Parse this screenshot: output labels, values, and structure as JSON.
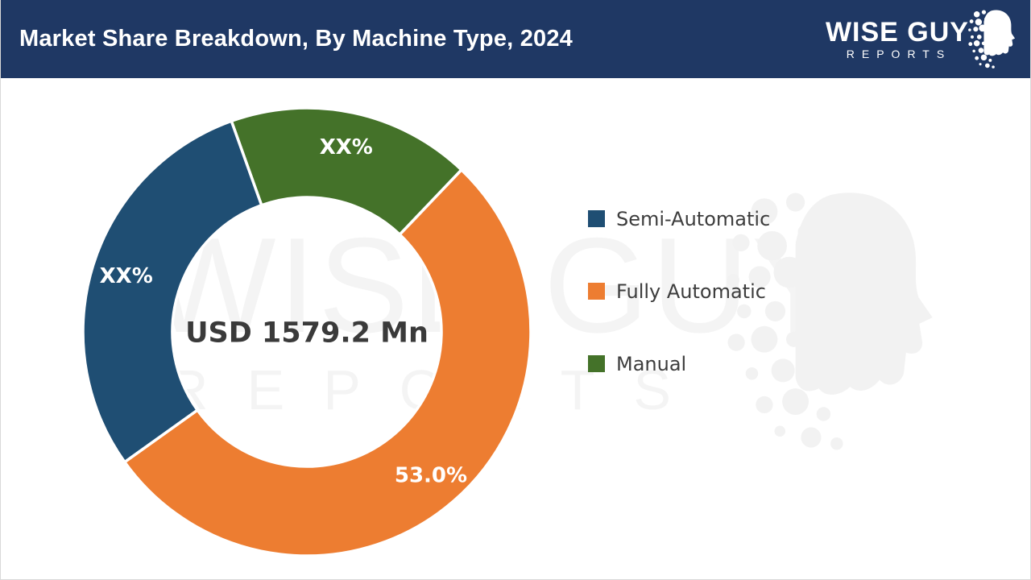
{
  "header": {
    "title": "Market Share Breakdown, By Machine Type, 2024",
    "brand": {
      "name": "WISE GUY",
      "sub": "REPORTS"
    }
  },
  "chart_data": {
    "type": "pie",
    "variant": "donut",
    "title": "Market Share Breakdown, By Machine Type, 2024",
    "center_label": "USD 1579.2 Mn",
    "start_angle_deg": -19.7,
    "direction": "clockwise",
    "slices": [
      {
        "name": "Manual",
        "value_pct": 17.6,
        "display_label": "XX%",
        "color": "#447229"
      },
      {
        "name": "Fully Automatic",
        "value_pct": 53.0,
        "display_label": "53.0%",
        "color": "#ED7D31"
      },
      {
        "name": "Semi-Automatic",
        "value_pct": 29.4,
        "display_label": "XX%",
        "color": "#1F4E73"
      }
    ],
    "legend": {
      "position": "right",
      "order": [
        "Semi-Automatic",
        "Fully Automatic",
        "Manual"
      ]
    }
  },
  "watermark": {
    "line1": "WISE GUY",
    "line2": "REPORTS"
  },
  "colors": {
    "header_bg": "#1F3864",
    "title_text": "#FFFFFF",
    "center_text": "#3A3A3A",
    "legend_text": "#3D3D3D",
    "slice_label_text": "#FFFFFF",
    "slice_divider": "#FFFFFF",
    "watermark": "#F4F4F4",
    "page_border": "#D9D9D9"
  }
}
